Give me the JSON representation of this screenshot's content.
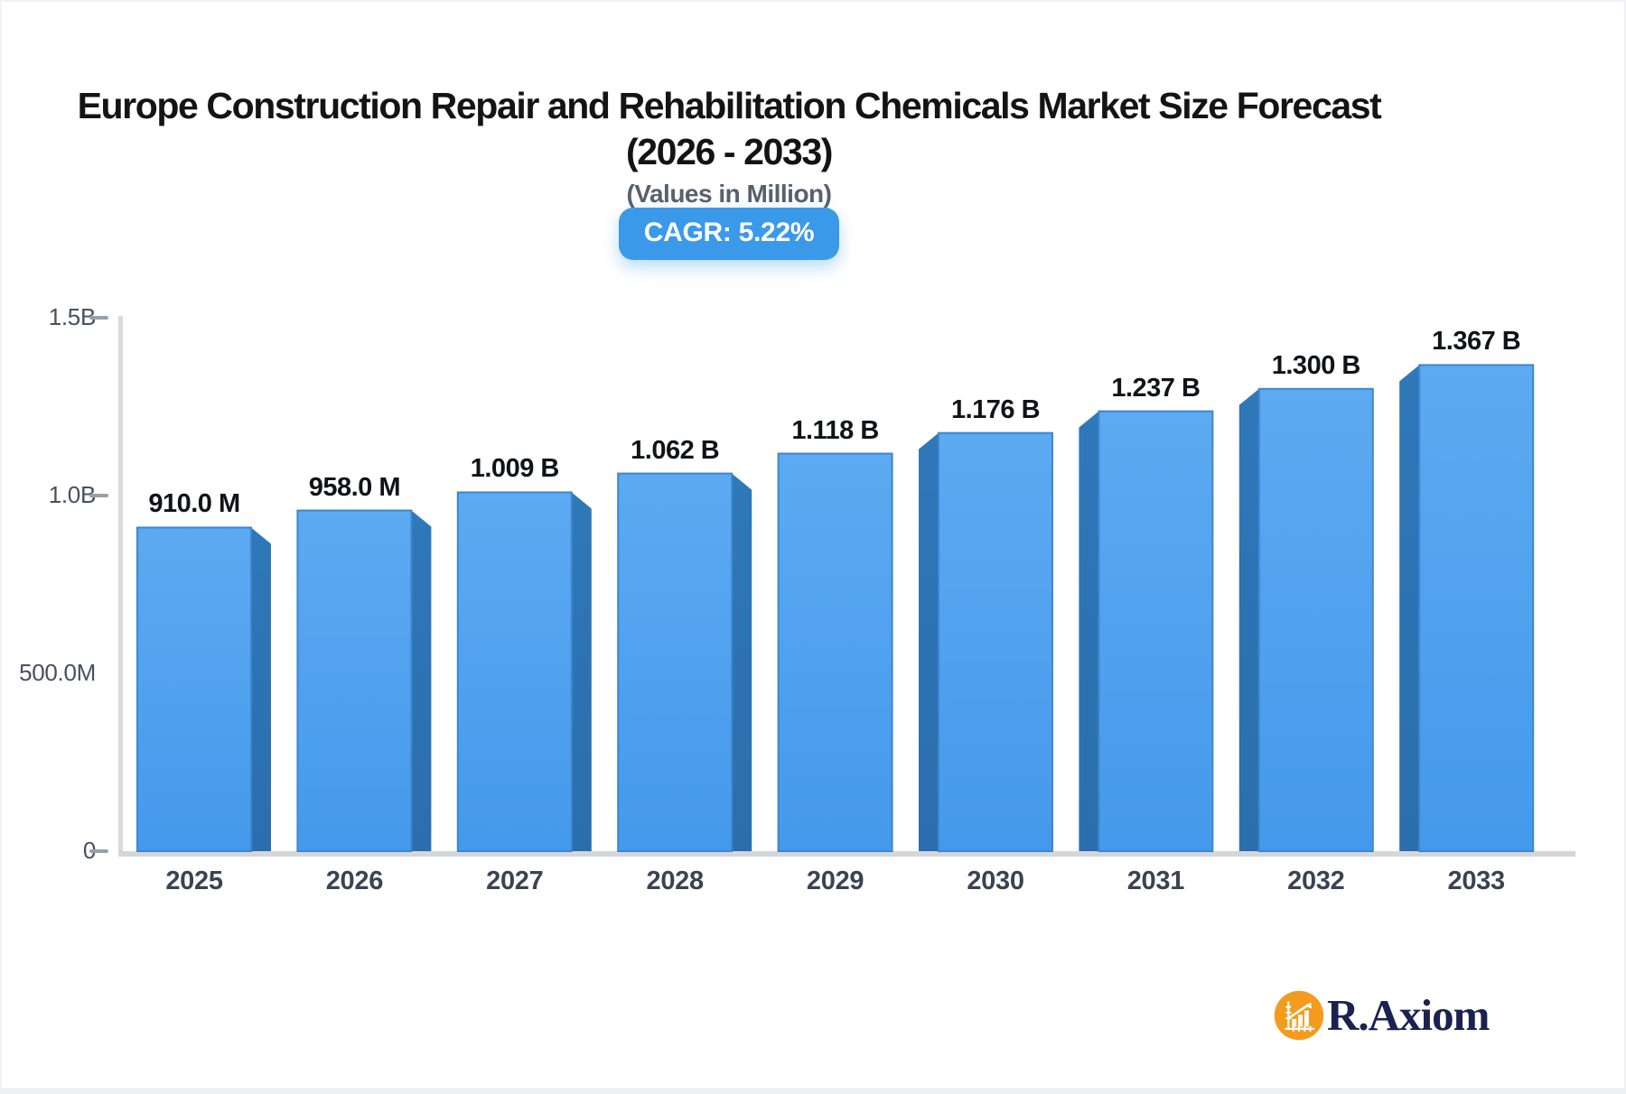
{
  "header": {
    "title_line1": "Europe Construction Repair and Rehabilitation Chemicals Market Size Forecast",
    "title_line2": "(2026 - 2033)",
    "subtitle": "(Values in Million)",
    "cagr_badge": "CAGR: 5.22%"
  },
  "chart_data": {
    "type": "bar",
    "title": "Europe Construction Repair and Rehabilitation Chemicals Market Size Forecast (2026 - 2033)",
    "subtitle": "(Values in Million)",
    "cagr_percent": 5.22,
    "categories": [
      "2025",
      "2026",
      "2027",
      "2028",
      "2029",
      "2030",
      "2031",
      "2032",
      "2033"
    ],
    "series": [
      {
        "name": "Market Size",
        "values_in_billions": [
          0.91,
          0.958,
          1.009,
          1.062,
          1.118,
          1.176,
          1.237,
          1.3,
          1.367
        ]
      }
    ],
    "value_labels": [
      "910.0 M",
      "958.0 M",
      "1.009 B",
      "1.062 B",
      "1.118 B",
      "1.176 B",
      "1.237 B",
      "1.300 B",
      "1.367 B"
    ],
    "yaxis": {
      "range_billions": [
        0,
        1.5
      ],
      "ticks": [
        {
          "label": "1.5B",
          "value": 1.5,
          "dash": true
        },
        {
          "label": "1.0B",
          "value": 1.0,
          "dash": true
        },
        {
          "label": "500.0M",
          "value": 0.5,
          "dash": false
        },
        {
          "label": "0",
          "value": 0.0,
          "dash": true
        }
      ]
    },
    "legend": "none",
    "grid": "off",
    "colors": {
      "bar_face_top": "#5caaf1",
      "bar_face_bottom": "#4599ec",
      "bar_face_border": "#3d87cf",
      "bar_side": "#2e75b5",
      "badge_bg": "#3b99ea",
      "axis_line": "#d7dbe0",
      "tick_dash": "#97a1ac"
    }
  },
  "watermark": {
    "brand": "R.Axiom",
    "icon": "growth-chart-icon",
    "icon_bg": "#f49b1e",
    "text_color": "#1b2150"
  }
}
